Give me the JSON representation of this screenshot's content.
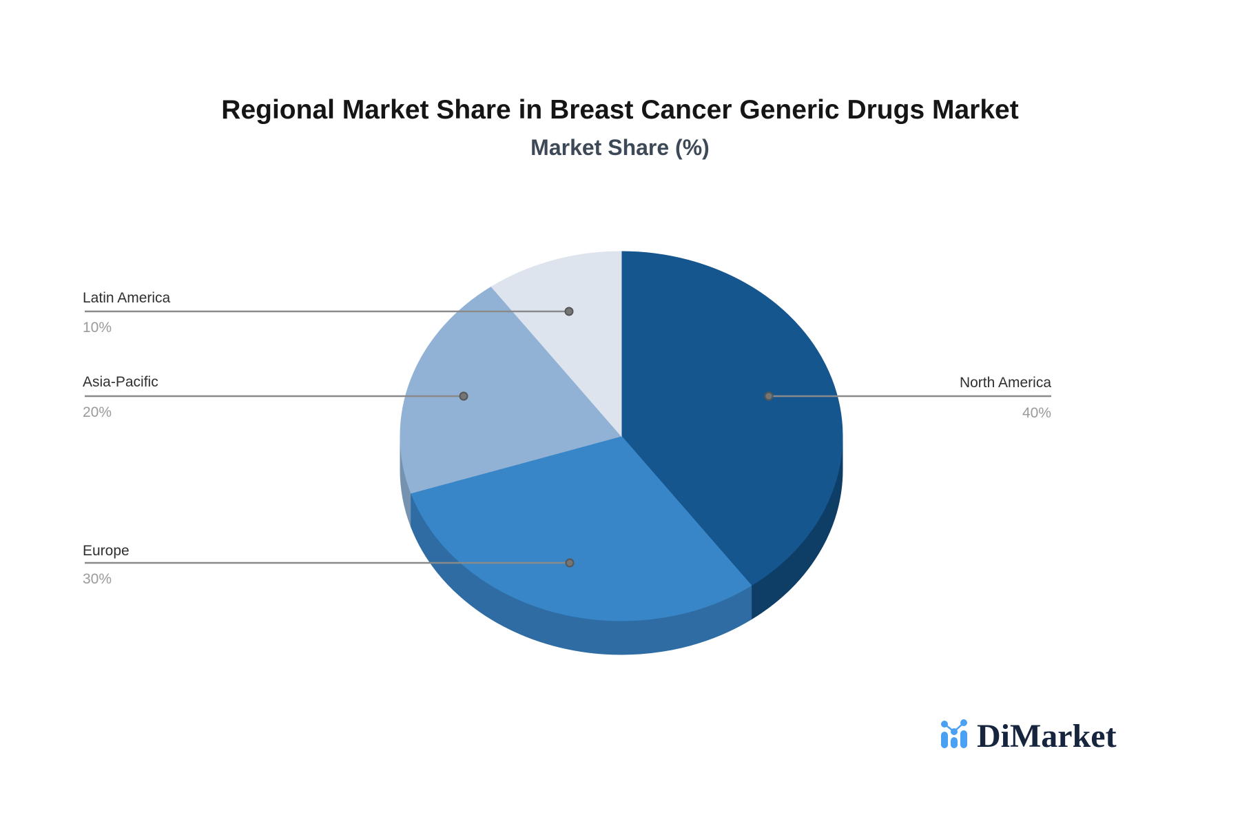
{
  "title": "Regional Market Share in Breast Cancer Generic Drugs Market",
  "subtitle": "Market Share (%)",
  "chart_data": {
    "type": "pie",
    "style": "3d-pie",
    "title": "Regional Market Share in Breast Cancer Generic Drugs Market",
    "subtitle": "Market Share (%)",
    "unit": "%",
    "start_angle": "12-oclock",
    "direction": "clockwise",
    "legend_position": "callout-lines",
    "slices": [
      {
        "label": "North America",
        "value": 40,
        "display": "40%",
        "color": "#16568f",
        "side_color": "#0e3d65",
        "callout_side": "right"
      },
      {
        "label": "Europe",
        "value": 30,
        "display": "30%",
        "color": "#3886c7",
        "side_color": "#2e6ca3",
        "callout_side": "left"
      },
      {
        "label": "Asia-Pacific",
        "value": 20,
        "display": "20%",
        "color": "#92b2d5",
        "side_color": "#7593b1",
        "callout_side": "left"
      },
      {
        "label": "Latin America",
        "value": 10,
        "display": "10%",
        "color": "#dde4ee",
        "side_color": "#c3cfdf",
        "callout_side": "left"
      }
    ]
  },
  "branding": {
    "name": "DiMarket",
    "icon": "bar-chart-trend-icon",
    "icon_color": "#4aa0f2",
    "text_color": "#16243d"
  },
  "colors": {
    "background": "#ffffff",
    "title": "#151515",
    "subtitle": "#3d4956",
    "label_text": "#2f2f2f",
    "value_text": "#9a9a9a",
    "leader_line": "#8a8a8a",
    "callout_dot": "#757575"
  }
}
